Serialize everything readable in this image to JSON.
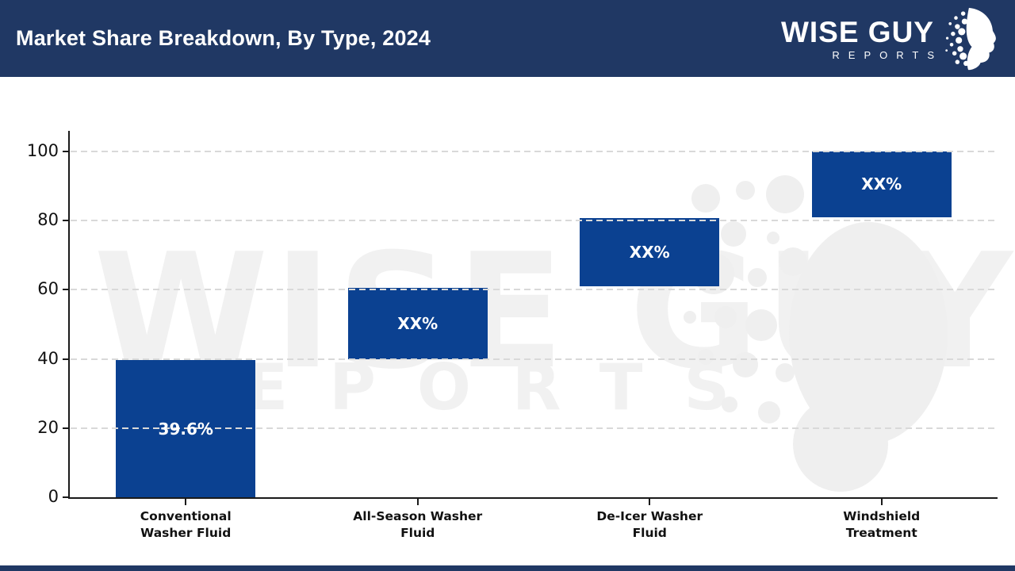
{
  "header": {
    "title": "Market Share Breakdown, By Type, 2024",
    "logo": {
      "name": "WISE GUY",
      "sub": "REPORTS"
    }
  },
  "watermark": {
    "line1": "WISE GUY",
    "line2": "REPORTS"
  },
  "chart_data": {
    "type": "bar",
    "subtype": "waterfall",
    "title": "Market Share Breakdown, By Type, 2024",
    "categories": [
      [
        "Conventional",
        "Washer Fluid"
      ],
      [
        "All-Season Washer",
        "Fluid"
      ],
      [
        "De-Icer Washer",
        "Fluid"
      ],
      [
        "Windshield",
        "Treatment"
      ]
    ],
    "bars": [
      {
        "start": 0,
        "end": 39.6,
        "label": "39.6%"
      },
      {
        "start": 40,
        "end": 60.5,
        "label": "XX%"
      },
      {
        "start": 61,
        "end": 80.7,
        "label": "XX%"
      },
      {
        "start": 81,
        "end": 100,
        "label": "XX%"
      }
    ],
    "yticks": [
      0,
      20,
      40,
      60,
      80,
      100
    ],
    "ylim": [
      0,
      105.5
    ],
    "xlabel": "",
    "ylabel": "",
    "grid": "horizontal-dashed",
    "legend": "none",
    "colors": {
      "bar": "#0b4191",
      "header_bg": "#203864",
      "grid": "#d9d9d9",
      "axis": "#1a1a1a",
      "bar_label": "#ffffff",
      "tick_label": "#111111",
      "watermark": "#f1f1f1"
    }
  }
}
